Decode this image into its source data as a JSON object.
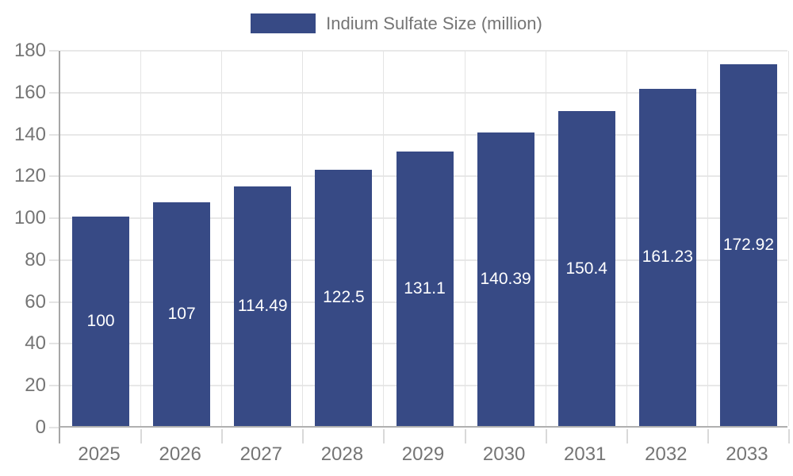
{
  "legend": {
    "label": "Indium Sulfate Size (million)"
  },
  "chart_data": {
    "type": "bar",
    "title": "",
    "xlabel": "",
    "ylabel": "",
    "categories": [
      "2025",
      "2026",
      "2027",
      "2028",
      "2029",
      "2030",
      "2031",
      "2032",
      "2033"
    ],
    "series": [
      {
        "name": "Indium Sulfate Size (million)",
        "values": [
          100,
          107,
          114.49,
          122.5,
          131.1,
          140.39,
          150.4,
          161.23,
          172.92
        ]
      }
    ],
    "value_labels": [
      "100",
      "107",
      "114.49",
      "122.5",
      "131.1",
      "140.39",
      "150.4",
      "161.23",
      "172.92"
    ],
    "ylim": [
      0,
      180
    ],
    "ytick_step": 20,
    "grid": "on",
    "legend_position": "top-center",
    "colors": {
      "bar": "#374a85",
      "value_label": "#ffffff",
      "axis_label": "#757575",
      "legend_text": "#757575",
      "y_axis_line": "#a6a6a6",
      "x_axis_line": "#b0b0b0",
      "gridline": "#e8e8e8"
    }
  }
}
